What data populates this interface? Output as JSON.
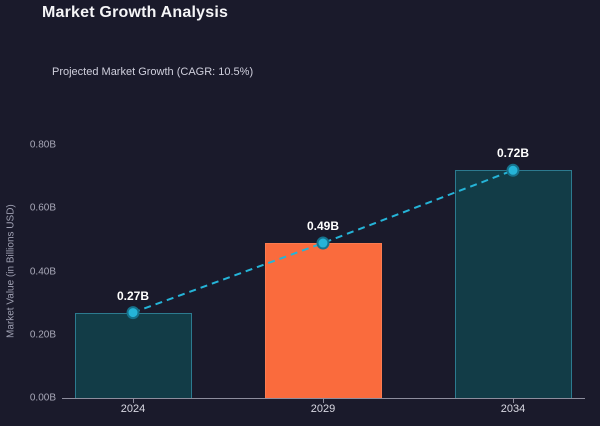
{
  "header": {
    "title": "Market Growth Analysis",
    "subtitle": "Projected Market Growth (CAGR: 10.5%)"
  },
  "chart_data": {
    "type": "bar",
    "title": "Market Growth Analysis",
    "subtitle": "Projected Market Growth (CAGR: 10.5%)",
    "categories": [
      "2024",
      "2029",
      "2034"
    ],
    "values": [
      0.27,
      0.49,
      0.72
    ],
    "value_labels": [
      "0.27B",
      "0.49B",
      "0.72B"
    ],
    "xlabel": "",
    "ylabel": "Market Value (in Billions USD)",
    "ylim": [
      0,
      0.8
    ],
    "yticks": [
      "0.00B",
      "0.20B",
      "0.40B",
      "0.60B",
      "0.80B"
    ],
    "ytick_values": [
      0,
      0.2,
      0.4,
      0.6,
      0.8
    ],
    "grid": false,
    "legend": "none",
    "bar_colors": [
      "#123c47",
      "#fa6b3d",
      "#123c47"
    ],
    "bar_border_colors": [
      "#2c7a8f",
      "#fb7b4f",
      "#2c7a8f"
    ],
    "trend_line": {
      "style": "dashed",
      "color": "#25b4d8",
      "marker_color": "#25b4d8",
      "marker_ring_color": "#16728c"
    },
    "colors": {
      "background": "#1a1a2b",
      "title_text": "#f5f5f7",
      "subtitle_text": "#cfcfdc",
      "tick_text": "#a8a8b8",
      "value_text": "#ffffff"
    }
  }
}
